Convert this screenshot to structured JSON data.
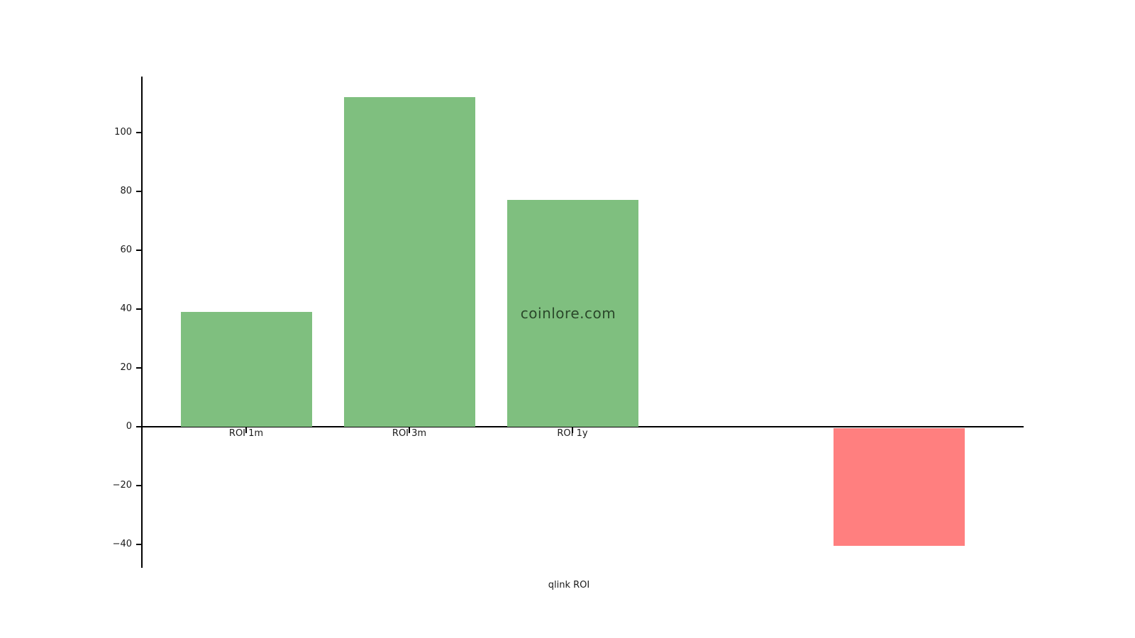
{
  "figure": {
    "background": "#ffffff",
    "watermark": "coinlore.com",
    "xlabel": "qlink ROI"
  },
  "chart_data": {
    "type": "bar",
    "title": "",
    "xlabel": "qlink ROI",
    "ylabel": "",
    "categories": [
      "ROI 1m",
      "ROI 3m",
      "ROI 1y",
      "",
      ""
    ],
    "values": [
      39,
      112,
      77,
      null,
      -40
    ],
    "bar_colors": [
      "#7fbf7f",
      "#7fbf7f",
      "#7fbf7f",
      null,
      "#ff7f7f"
    ],
    "positive_color": "#7fbf7f",
    "negative_color": "#ff7f7f",
    "yticks": [
      100,
      80,
      60,
      40,
      20,
      0,
      -20,
      -40
    ],
    "ylim": [
      -48,
      119
    ],
    "grid": false,
    "legend_position": "none",
    "watermark": "coinlore.com",
    "axis_color": "#000000",
    "tick_label_color": "#1a1a1a"
  }
}
